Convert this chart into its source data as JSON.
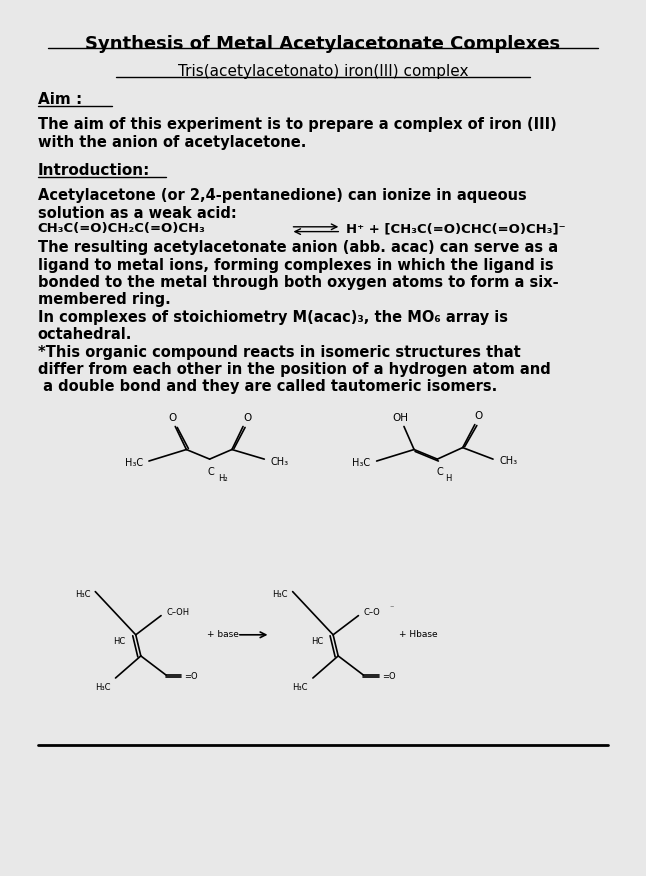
{
  "bg_color": "#e8e8e8",
  "page_bg": "#ffffff",
  "title": "Synthesis of Metal Acetylacetonate Complexes",
  "subtitle": "Tris(acetylacetonato) iron(III) complex",
  "aim_label": "Aim :",
  "aim_text": "The aim of this experiment is to prepare a complex of iron (III)\nwith the anion of acetylacetone.",
  "intro_label": "Introduction:",
  "intro_text1": "Acetylacetone (or 2,4-pentanedione) can ionize in aqueous\nsolution as a weak acid:",
  "equation_left": "CH₃C(=O)CH₂C(=O)CH₃",
  "equation_right": "H⁺ + [CH₃C(=O)CHC(=O)CH₃]⁻",
  "intro_text2": "The resulting acetylacetonate anion (abb. acac) can serve as a\nligand to metal ions, forming complexes in which the ligand is\nbonded to the metal through both oxygen atoms to form a six-\nmembered ring.\nIn complexes of stoichiometry M(acac)₃, the MO₆ array is\noctahedral.\n*This organic compound reacts in isomeric structures that\ndiffer from each other in the position of a hydrogen atom and\n a double bond and they are called tautomeric isomers.",
  "title_size": 13,
  "subtitle_size": 11,
  "label_size": 11,
  "body_size": 10.5,
  "eq_size": 9.5
}
